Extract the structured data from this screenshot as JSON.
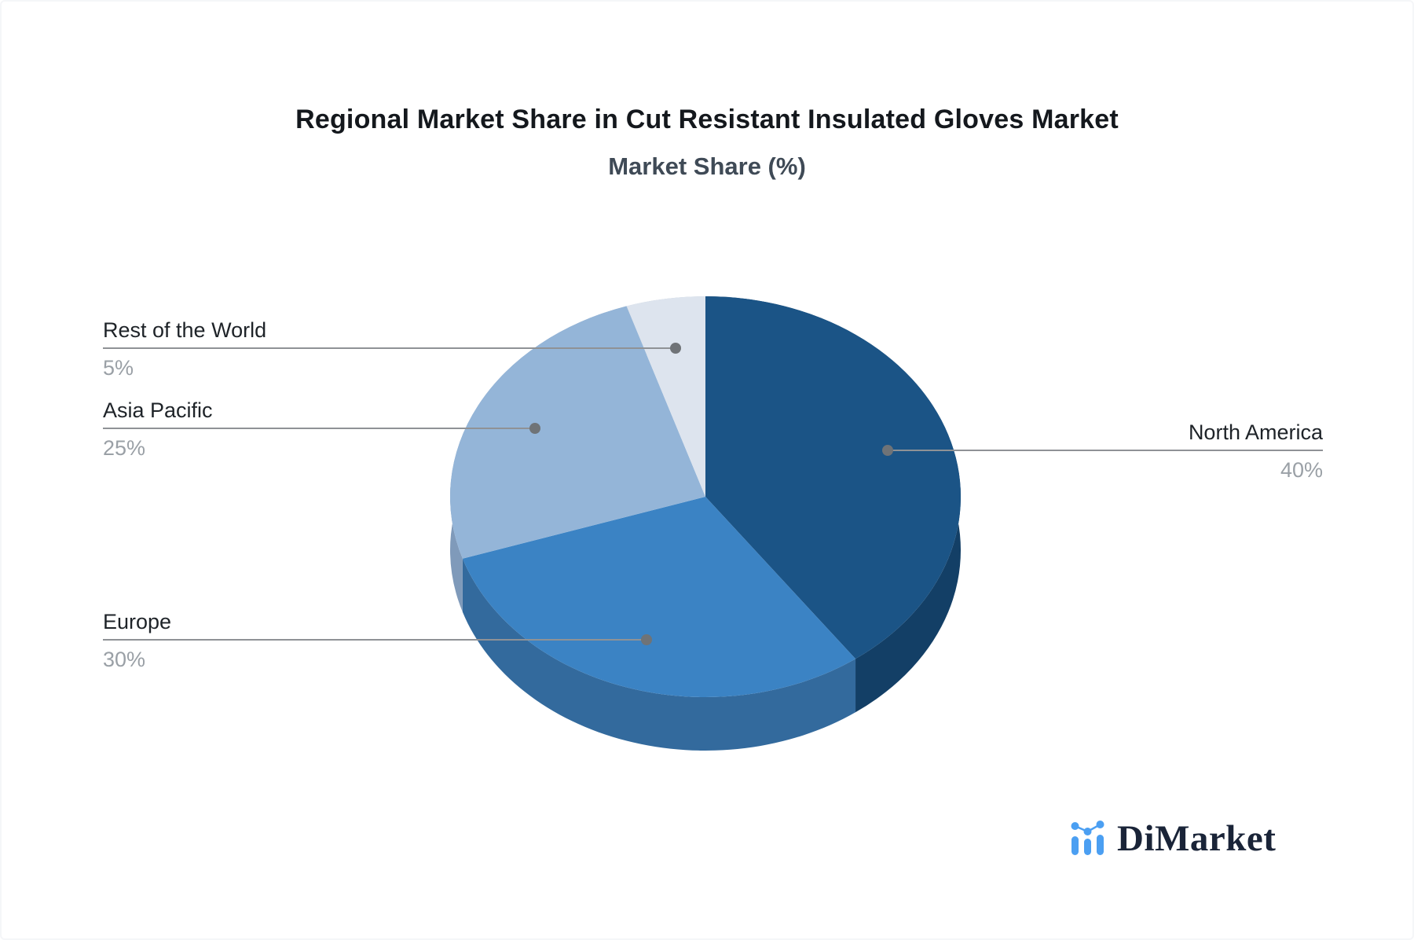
{
  "chart_data": {
    "type": "pie",
    "style": "3d-pie",
    "title": "Regional Market Share in Cut Resistant Insulated Gloves Market",
    "subtitle": "Market Share (%)",
    "unit": "%",
    "categories": [
      "North America",
      "Europe",
      "Asia Pacific",
      "Rest of the World"
    ],
    "values": [
      40,
      30,
      25,
      5
    ],
    "start_angle": "12 o'clock, clockwise",
    "colors": [
      "#1b5486",
      "#3b83c4",
      "#94b5d8",
      "#dde4ee"
    ],
    "side_colors": [
      "#133f66",
      "#336a9d",
      "#7f9aba",
      "#b8c4d4"
    ],
    "legend_position": "callout-labels",
    "callouts": [
      {
        "name": "North America",
        "value": "40%",
        "side": "right"
      },
      {
        "name": "Europe",
        "value": "30%",
        "side": "left"
      },
      {
        "name": "Asia Pacific",
        "value": "25%",
        "side": "left"
      },
      {
        "name": "Rest of the World",
        "value": "5%",
        "side": "left"
      }
    ]
  },
  "brand": {
    "name": "DiMarket",
    "icon": "bar-chart-logo-icon",
    "icon_color": "#4b9ff2",
    "text_color": "#1a2438"
  },
  "colors": {
    "background": "#ffffff",
    "title": "#14181d",
    "subtitle": "#3f4a56",
    "label": "#1e2328",
    "value": "#9aa0a6",
    "leader_line": "#8f9296",
    "leader_dot": "#6f7377"
  }
}
